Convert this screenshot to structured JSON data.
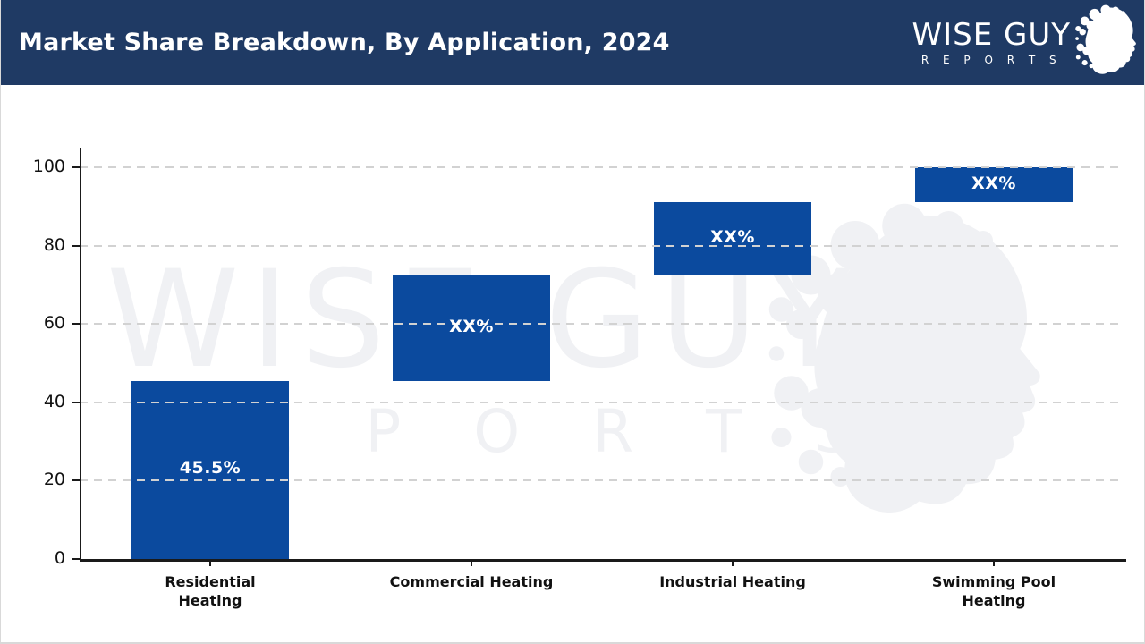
{
  "header": {
    "title": "Market Share Breakdown, By Application, 2024",
    "logo": {
      "line1": "WISE GUY",
      "line2": "R E P O R T S"
    }
  },
  "watermark": {
    "line1": "WISE GUY",
    "line2": "R E P O R T S"
  },
  "colors": {
    "header_bg": "#1f3a64",
    "bar": "#0b4a9e",
    "grid": "#d2d2d2",
    "axis": "#1a1a1a",
    "bar_label": "#ffffff",
    "watermark": "#f0f1f4",
    "page_border": "#d9d9d9"
  },
  "chart_data": {
    "type": "bar",
    "variant": "stepped-cumulative",
    "title": "Market Share Breakdown, By Application, 2024",
    "xlabel": "",
    "ylabel": "",
    "ylim": [
      0,
      100
    ],
    "yticks": [
      0,
      20,
      40,
      60,
      80,
      100
    ],
    "grid": true,
    "grid_style": "dashed",
    "legend": "none",
    "bar_color": "#0b4a9e",
    "categories": [
      [
        "Residential",
        "Heating"
      ],
      [
        "Commercial Heating"
      ],
      [
        "Industrial Heating"
      ],
      [
        "Swimming Pool",
        "Heating"
      ]
    ],
    "segments": [
      {
        "category": "Residential Heating",
        "label": "45.5%",
        "start": 0,
        "end": 45.5
      },
      {
        "category": "Commercial Heating",
        "label": "XX%",
        "start": 45.5,
        "end": 72.5
      },
      {
        "category": "Industrial Heating",
        "label": "XX%",
        "start": 72.5,
        "end": 91
      },
      {
        "category": "Swimming Pool Heating",
        "label": "XX%",
        "start": 91,
        "end": 100
      }
    ]
  }
}
